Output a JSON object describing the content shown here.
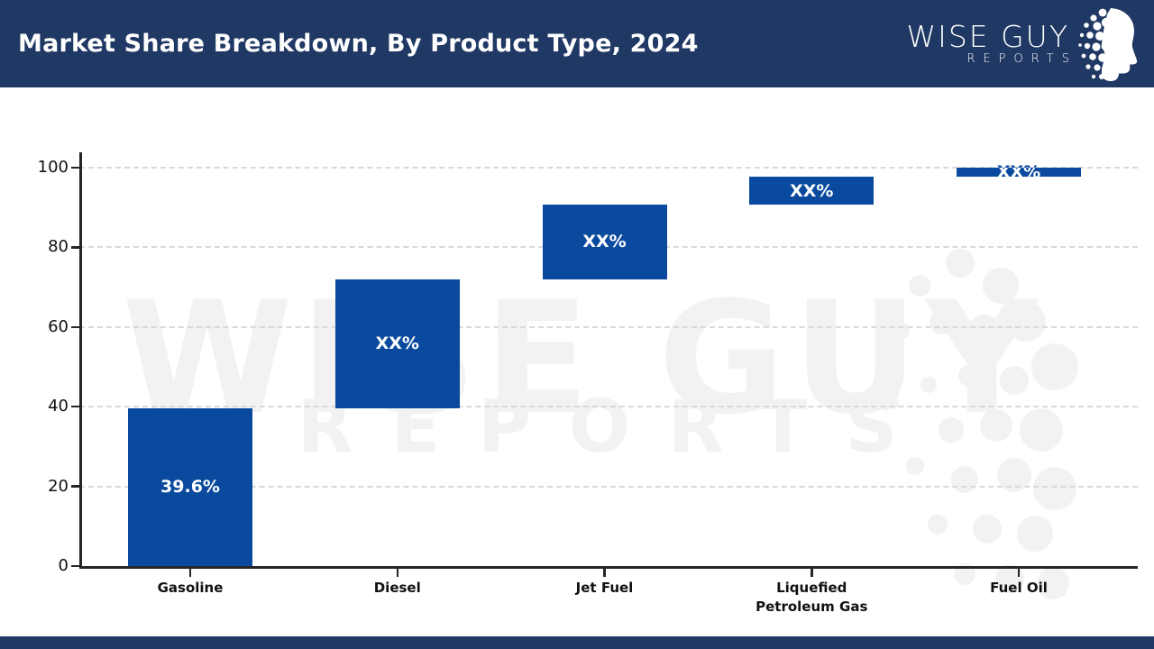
{
  "header": {
    "title": "Market Share Breakdown, By Product Type, 2024",
    "logo": {
      "line1": "WISE GUY",
      "line2": "REPORTS"
    }
  },
  "watermark": {
    "line1": "WISE GUY",
    "line2": "REPORTS"
  },
  "chart_data": {
    "type": "bar",
    "subtype": "waterfall-stacked-percentage",
    "title": "Market Share Breakdown, By Product Type, 2024",
    "categories": [
      "Gasoline",
      "Diesel",
      "Jet Fuel",
      "Liquefied\nPetroleum Gas",
      "Fuel Oil"
    ],
    "segments": [
      {
        "category": "Gasoline",
        "start": 0,
        "end": 39.6,
        "value_label": "39.6%"
      },
      {
        "category": "Diesel",
        "start": 39.6,
        "end": 72.0,
        "value_label": "XX%"
      },
      {
        "category": "Jet Fuel",
        "start": 72.0,
        "end": 90.7,
        "value_label": "XX%"
      },
      {
        "category": "Liquefied Petroleum Gas",
        "start": 90.7,
        "end": 97.7,
        "value_label": "XX%"
      },
      {
        "category": "Fuel Oil",
        "start": 97.7,
        "end": 100.0,
        "value_label": "XX%"
      }
    ],
    "yticks": [
      0,
      20,
      40,
      60,
      80,
      100
    ],
    "ylim": [
      0,
      100
    ],
    "xlabel": "",
    "ylabel": "",
    "grid": "horizontal-dashed",
    "legend": "none",
    "bar_color": "#0a4a9e"
  },
  "colors": {
    "header_bg": "#203864",
    "footer_bg": "#203864",
    "bar": "#0a4a9e",
    "axis": "#262626",
    "gridline": "#d9d9d9",
    "watermark": "#f2f2f2",
    "title_text": "#ffffff",
    "tick_text": "#111111"
  }
}
